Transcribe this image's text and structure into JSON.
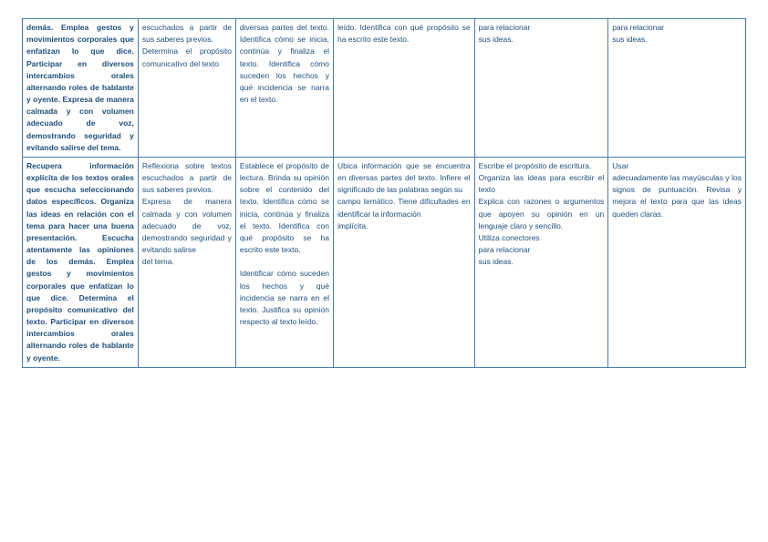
{
  "colors": {
    "border": "#4a7bb0",
    "text": "#1f4e79",
    "background": "#ffffff"
  },
  "table": {
    "rows": [
      {
        "cells": [
          {
            "text": "demás. Emplea gestos y movimientos corporales que enfatizan lo que dice. Participar en diversos intercambios orales alternando roles de hablante y oyente. Expresa de manera calmada y con volumen adecuado de voz, demostrando seguridad y evitando salirse del tema.",
            "bold": true
          },
          {
            "text": "escuchados a partir de sus saberes previos.\nDetermina el propósito comunicativo del texto"
          },
          {
            "text": "diversas partes del texto. Identifica cómo se inicia, continúa y finaliza el texto. Identifica cómo suceden los hechos y qué incidencia se narra en el texto."
          },
          {
            "text": "leído. Identifica con qué propósito se ha escrito este texto."
          },
          {
            "text": "para relacionar\nsus ideas."
          },
          {
            "text": "para relacionar\nsus ideas."
          }
        ]
      },
      {
        "cells": [
          {
            "text": "Recupera información explícita de los textos orales que escucha seleccionando datos específicos. Organiza las ideas en relación con el tema para hacer una buena presentación. Escucha atentamente las opiniones de los demás. Emplea gestos y movimientos corporales que enfatizan lo que dice. Determina el propósito comunicativo del texto. Participar en diversos intercambios orales alternando roles de hablante y oyente.",
            "bold": true
          },
          {
            "text": "Reflexiona sobre textos escuchados a partir de sus saberes previos.\nExpresa de manera calmada y con volumen adecuado de voz, demostrando seguridad y evitando salirse\ndel tema."
          },
          {
            "text": "Establece el propósito de lectura. Brinda su opinión sobre el contenido del texto. Identifica cómo se inicia, continúa y finaliza el texto. Identifica con qué propósito se ha escrito este texto.\n\nIdentificar cómo suceden los hechos y qué incidencia se narra en el texto. Justifica su opinión respecto al texto leído."
          },
          {
            "text": "Ubica información que se encuentra en diversas partes del texto. Infiere el significado de las palabras según su\ncampo temático. Tiene dificultades en identificar la información\nimplícita."
          },
          {
            "text": "Escribe el propósito de escritura.\nOrganiza las ideas para escribir el texto\nExplica con razones o argumentos que apoyen su opinión en un lenguaje claro y sencillo.\nUtiliza conectores\npara relacionar\nsus ideas."
          },
          {
            "text": "Usar\nadecuadamente las mayúsculas y los signos de puntuación. Revisa y mejora el texto para que las ideas queden claras."
          }
        ]
      }
    ]
  }
}
